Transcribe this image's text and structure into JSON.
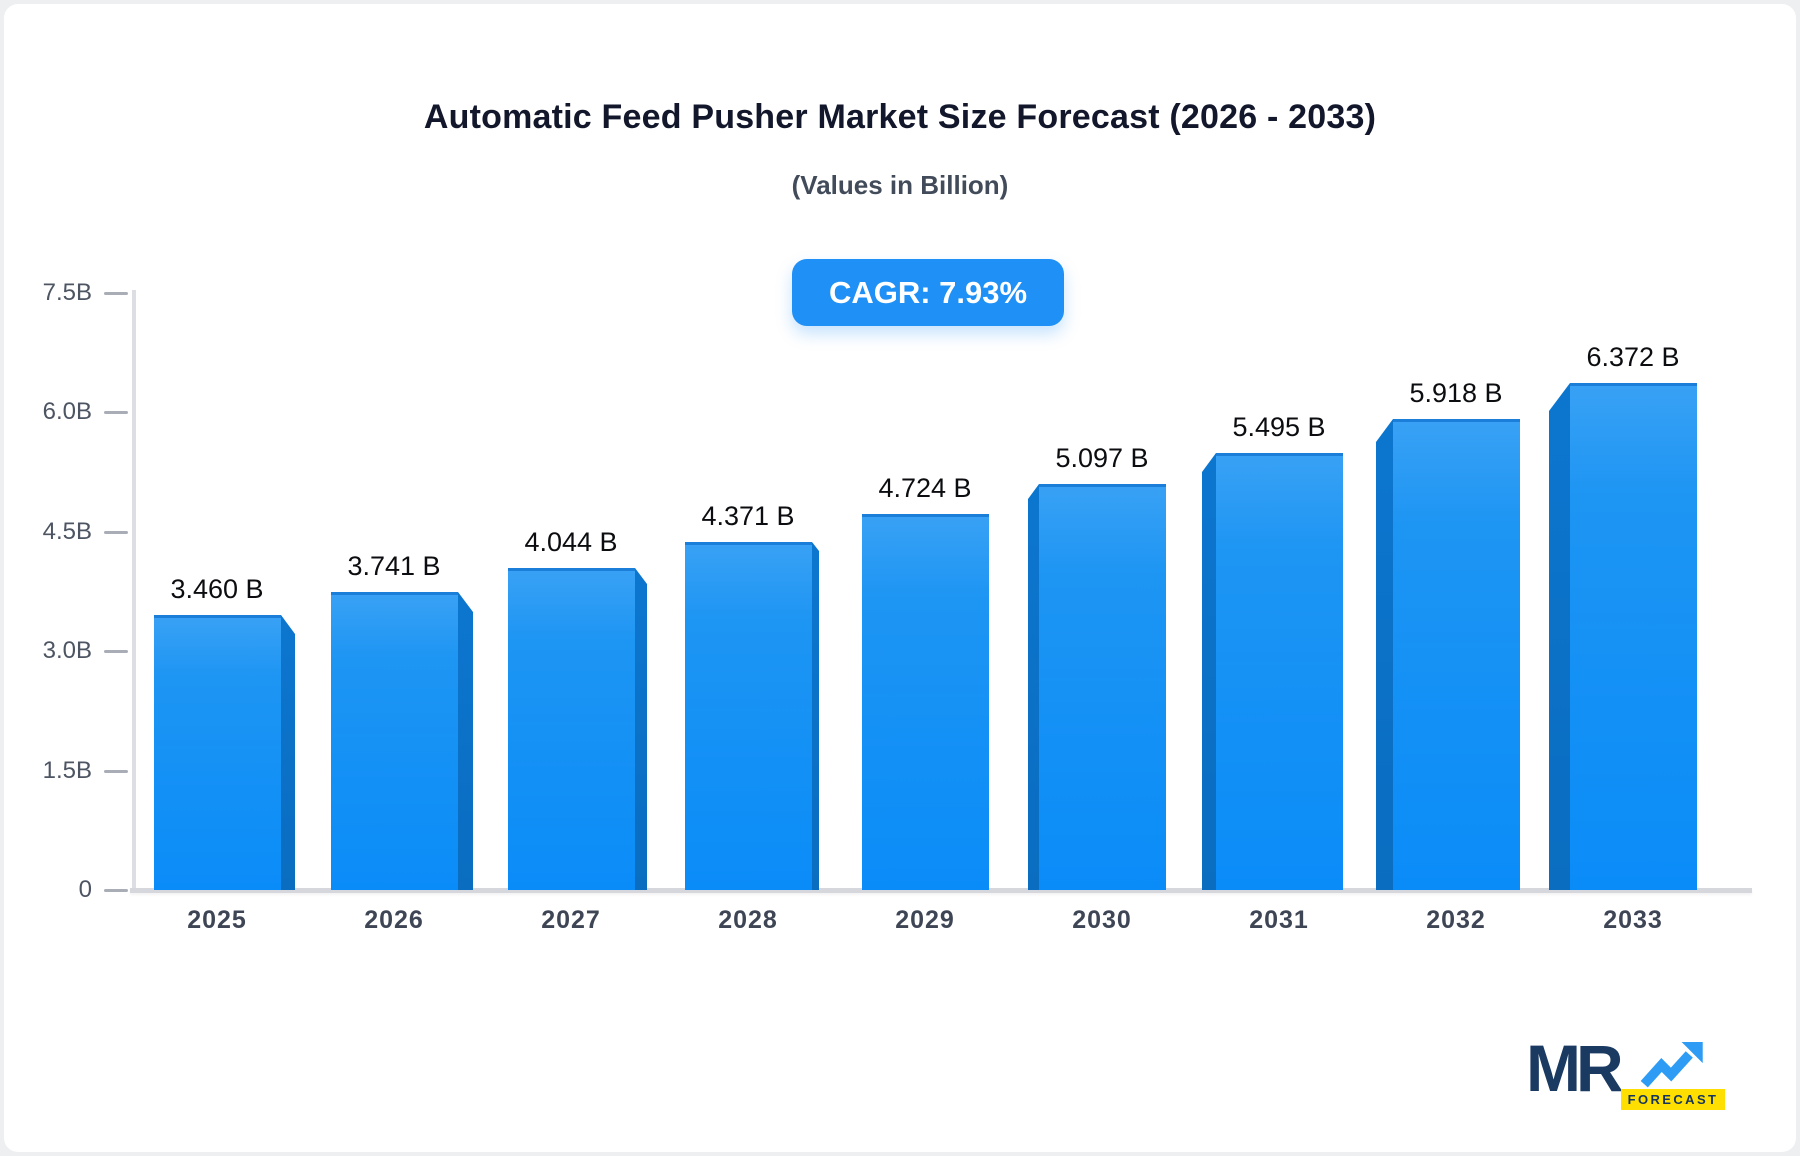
{
  "page": {
    "background": "#edeff1",
    "card_background": "#ffffff"
  },
  "header": {
    "title": "Automatic Feed Pusher Market Size Forecast (2026 - 2033)",
    "subtitle": "(Values in Billion)"
  },
  "badge": {
    "label": "CAGR: 7.93%",
    "color": "#1e90f6"
  },
  "chart_data": {
    "type": "bar",
    "title": "Automatic Feed Pusher Market Size Forecast (2026 - 2033)",
    "subtitle": "(Values in Billion)",
    "cagr_percent": 7.93,
    "categories": [
      "2025",
      "2026",
      "2027",
      "2028",
      "2029",
      "2030",
      "2031",
      "2032",
      "2033"
    ],
    "values": [
      3.46,
      3.741,
      4.044,
      4.371,
      4.724,
      5.097,
      5.495,
      5.918,
      6.372
    ],
    "value_labels": [
      "3.460 B",
      "3.741 B",
      "4.044 B",
      "4.371 B",
      "4.724 B",
      "5.097 B",
      "5.495 B",
      "5.918 B",
      "6.372 B"
    ],
    "unit": "Billion",
    "ylim": [
      0,
      7.5
    ],
    "yticks": [
      {
        "label": "7.5B",
        "value": 7.5
      },
      {
        "label": "6.0B",
        "value": 6.0
      },
      {
        "label": "4.5B",
        "value": 4.5
      },
      {
        "label": "3.0B",
        "value": 3.0
      },
      {
        "label": "1.5B",
        "value": 1.5
      },
      {
        "label": "0",
        "value": 0
      }
    ],
    "grid": false,
    "legend": "none",
    "bar_style": {
      "front_top_color": "#38a1f5",
      "front_bottom_color": "#0a8cf8",
      "side_color": "#0a70c6",
      "top_edge_color": "#1b7fd9"
    }
  },
  "logo": {
    "brand": "MR",
    "sub_label": "FORECAST",
    "brand_color": "#1a3a62",
    "accent_color": "#2e9cf4",
    "sub_bg_color": "#ffdf00"
  }
}
